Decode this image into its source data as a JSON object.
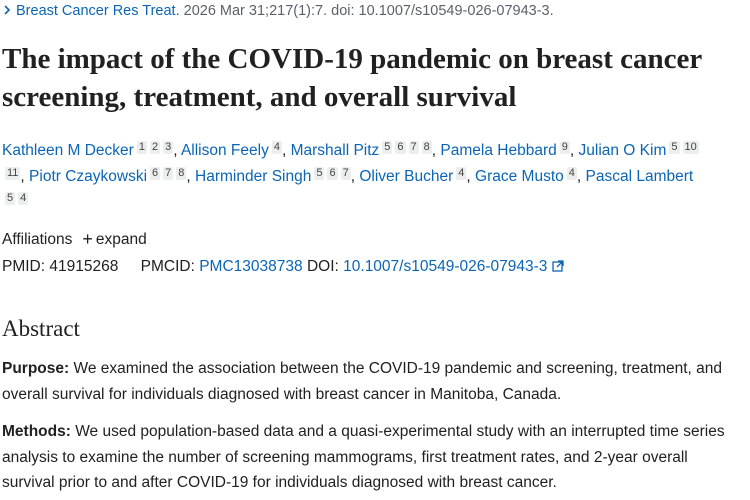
{
  "citation": {
    "journal": "Breast Cancer Res Treat.",
    "details": "2026 Mar 31;217(1):7. doi: 10.1007/s10549-026-07943-3."
  },
  "title": "The impact of the COVID-19 pandemic on breast cancer screening, treatment, and overall survival",
  "author_separator": ",",
  "authors": [
    {
      "name": "Kathleen M Decker",
      "affiliations": [
        "1",
        "2",
        "3"
      ]
    },
    {
      "name": "Allison Feely",
      "affiliations": [
        "4"
      ]
    },
    {
      "name": "Marshall Pitz",
      "affiliations": [
        "5",
        "6",
        "7",
        "8"
      ]
    },
    {
      "name": "Pamela Hebbard",
      "affiliations": [
        "9"
      ]
    },
    {
      "name": "Julian O Kim",
      "affiliations": [
        "5",
        "10",
        "11"
      ]
    },
    {
      "name": "Piotr Czaykowski",
      "affiliations": [
        "6",
        "7",
        "8"
      ]
    },
    {
      "name": "Harminder Singh",
      "affiliations": [
        "5",
        "6",
        "7"
      ]
    },
    {
      "name": "Oliver Bucher",
      "affiliations": [
        "4"
      ]
    },
    {
      "name": "Grace Musto",
      "affiliations": [
        "4"
      ]
    },
    {
      "name": "Pascal Lambert",
      "affiliations": [
        "5",
        "4"
      ]
    }
  ],
  "affiliations": {
    "label": "Affiliations",
    "expand": "expand"
  },
  "identifiers": {
    "pmid_label": "PMID:",
    "pmid": "41915268",
    "pmcid_label": "PMCID:",
    "pmcid": "PMC13038738",
    "doi_label": "DOI:",
    "doi": "10.1007/s10549-026-07943-3"
  },
  "abstract": {
    "heading": "Abstract",
    "sections": [
      {
        "label": "Purpose:",
        "text": "We examined the association between the COVID-19 pandemic and screening, treatment, and overall survival for individuals diagnosed with breast cancer in Manitoba, Canada."
      },
      {
        "label": "Methods:",
        "text": "We used population-based data and a quasi-experimental study with an interrupted time series analysis to examine the number of screening mammograms, first treatment rates, and 2-year overall survival prior to and after COVID-19 for individuals diagnosed with breast cancer."
      }
    ]
  }
}
